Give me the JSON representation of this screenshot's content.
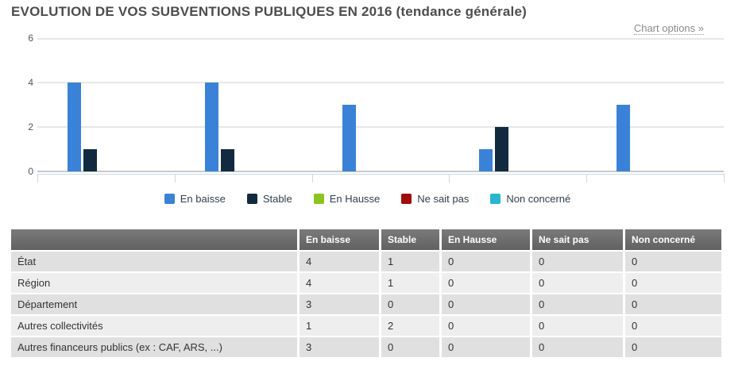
{
  "header": {
    "title": "EVOLUTION DE VOS SUBVENTIONS PUBLIQUES EN 2016 (tendance générale)",
    "chart_options_label": "Chart options »"
  },
  "chart_data": {
    "type": "bar",
    "title": "EVOLUTION DE VOS SUBVENTIONS PUBLIQUES EN 2016 (tendance générale)",
    "categories": [
      "État",
      "Région",
      "Département",
      "Autres collectivités",
      "Autres financeurs publics (ex : CAF, ARS, ...)"
    ],
    "series": [
      {
        "name": "En baisse",
        "color": "#3a82d8",
        "values": [
          4,
          4,
          3,
          1,
          3
        ]
      },
      {
        "name": "Stable",
        "color": "#122a3f",
        "values": [
          1,
          1,
          0,
          2,
          0
        ]
      },
      {
        "name": "En Hausse",
        "color": "#8cc41f",
        "values": [
          0,
          0,
          0,
          0,
          0
        ]
      },
      {
        "name": "Ne sait pas",
        "color": "#a00d0d",
        "values": [
          0,
          0,
          0,
          0,
          0
        ]
      },
      {
        "name": "Non concerné",
        "color": "#29b6d0",
        "values": [
          0,
          0,
          0,
          0,
          0
        ]
      }
    ],
    "xlabel": "",
    "ylabel": "",
    "ylim": [
      0,
      6
    ],
    "yticks": [
      0,
      2,
      4,
      6
    ],
    "grid": true,
    "legend_position": "bottom",
    "x_tick_labels_visible": false
  },
  "table": {
    "headers": [
      "",
      "En baisse",
      "Stable",
      "En Hausse",
      "Ne sait pas",
      "Non concerné"
    ],
    "rows": [
      {
        "label": "État",
        "values": [
          4,
          1,
          0,
          0,
          0
        ]
      },
      {
        "label": "Région",
        "values": [
          4,
          1,
          0,
          0,
          0
        ]
      },
      {
        "label": "Département",
        "values": [
          3,
          0,
          0,
          0,
          0
        ]
      },
      {
        "label": "Autres collectivités",
        "values": [
          1,
          2,
          0,
          0,
          0
        ]
      },
      {
        "label": "Autres financeurs publics (ex : CAF, ARS, ...)",
        "values": [
          3,
          0,
          0,
          0,
          0
        ]
      }
    ]
  }
}
